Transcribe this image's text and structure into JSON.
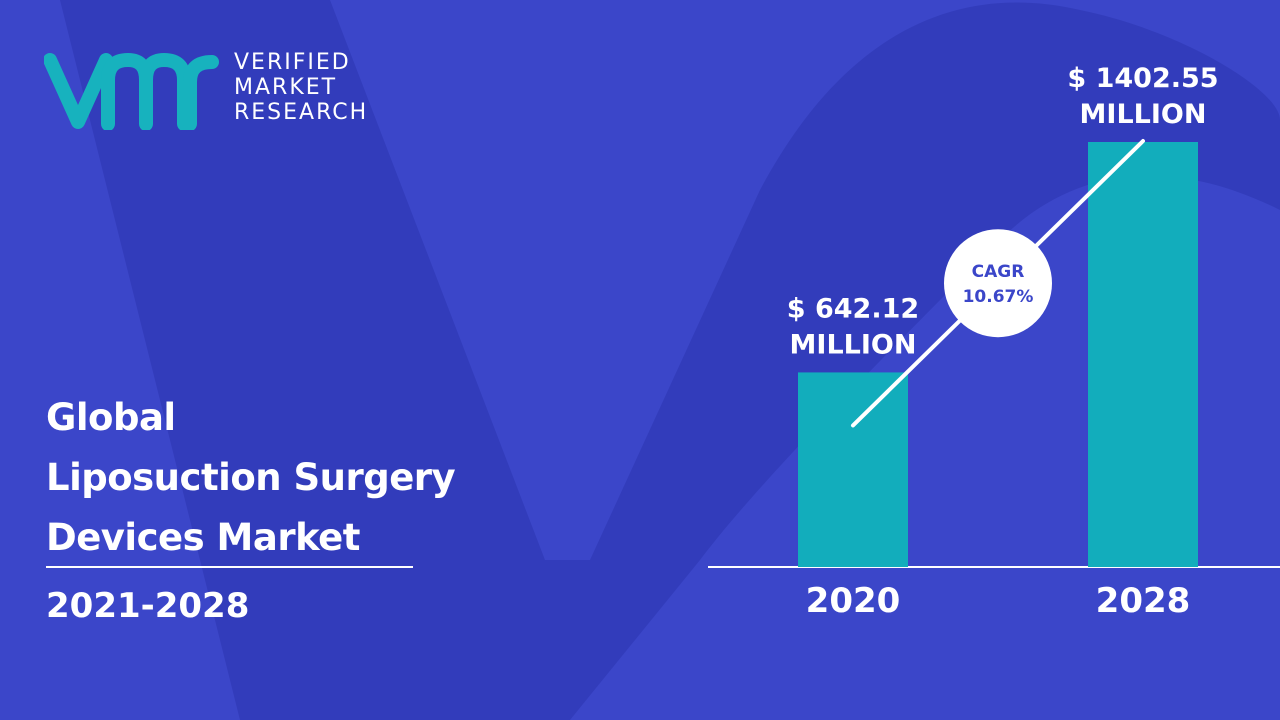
{
  "brand": {
    "logo_mark": "vmr",
    "name_lines": [
      "VERIFIED",
      "MARKET",
      "RESEARCH"
    ],
    "colors": {
      "logo_teal": "#17b2be",
      "background": "#3b46c9",
      "bar": "#12adbc",
      "text": "#ffffff",
      "cagr_text": "#3b46c9"
    }
  },
  "title_lines": [
    "Global",
    "Liposuction Surgery",
    "Devices Market"
  ],
  "period": "2021-2028",
  "chart_data": {
    "type": "bar",
    "categories": [
      "2020",
      "2028"
    ],
    "values": [
      642.12,
      1402.55
    ],
    "value_labels": [
      [
        "$ 642.12",
        "MILLION"
      ],
      [
        "$ 1402.55",
        "MILLION"
      ]
    ],
    "growth_badge": {
      "label": "CAGR",
      "value": "10.67%"
    },
    "trend_line": true,
    "grid": false,
    "ylim": [
      0,
      1402.55
    ]
  }
}
